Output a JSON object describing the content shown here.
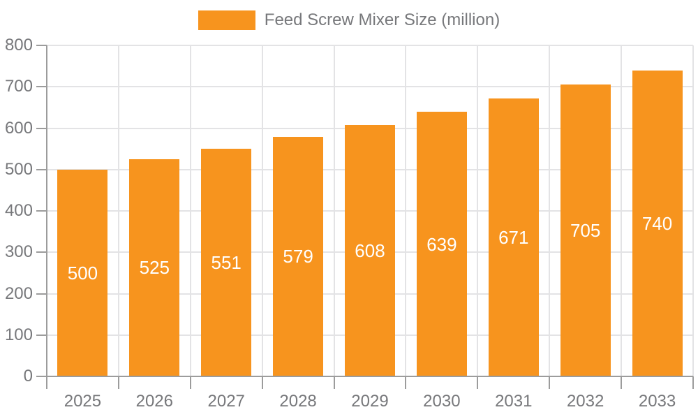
{
  "chart_data": {
    "type": "bar",
    "title": "",
    "series_name": "Feed Screw Mixer Size (million)",
    "categories": [
      "2025",
      "2026",
      "2027",
      "2028",
      "2029",
      "2030",
      "2031",
      "2032",
      "2033"
    ],
    "values": [
      500,
      525,
      551,
      579,
      608,
      639,
      671,
      705,
      740
    ],
    "xlabel": "",
    "ylabel": "",
    "ylim": [
      0,
      800
    ],
    "ytick_step": 100,
    "ytick_labels": [
      "0",
      "100",
      "200",
      "300",
      "400",
      "500",
      "600",
      "700",
      "800"
    ],
    "grid": true,
    "legend_position": "top",
    "value_labels_shown": true,
    "colors": {
      "bar": "#F7941E",
      "grid": "#E3E3E5",
      "axis": "#9C9C9C",
      "tick_label": "#77787B",
      "value_label": "#FFFFFF",
      "background": "#FFFFFF"
    }
  }
}
